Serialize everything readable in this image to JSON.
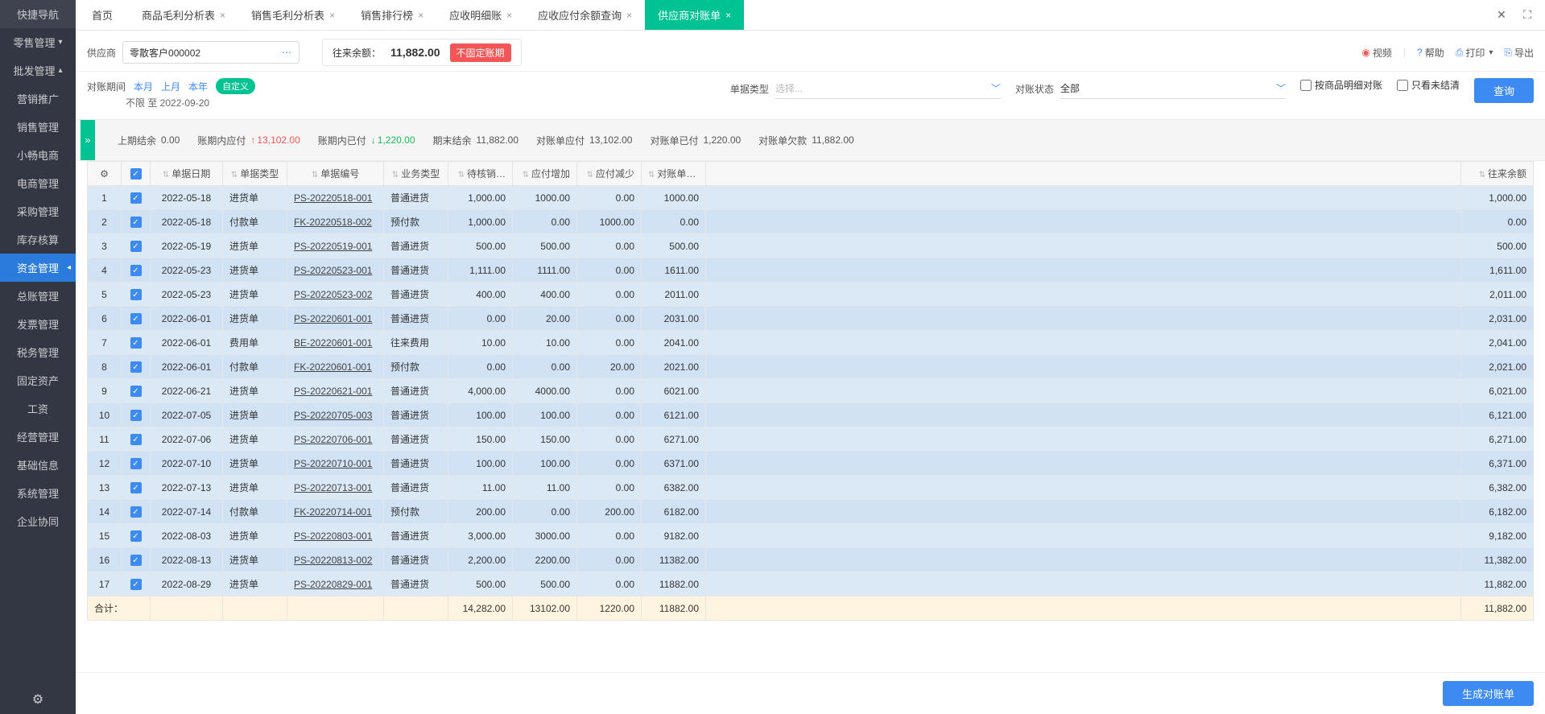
{
  "sidebar": {
    "items": [
      {
        "label": "快捷导航",
        "kind": "plain"
      },
      {
        "label": "零售管理",
        "kind": "expand-down"
      },
      {
        "label": "批发管理",
        "kind": "expand-up"
      },
      {
        "label": "营销推广",
        "kind": "sub"
      },
      {
        "label": "销售管理",
        "kind": "sub"
      },
      {
        "label": "小畅电商",
        "kind": "plain"
      },
      {
        "label": "电商管理",
        "kind": "plain"
      },
      {
        "label": "采购管理",
        "kind": "plain"
      },
      {
        "label": "库存核算",
        "kind": "plain"
      },
      {
        "label": "资金管理",
        "kind": "active"
      },
      {
        "label": "总账管理",
        "kind": "plain"
      },
      {
        "label": "发票管理",
        "kind": "plain"
      },
      {
        "label": "税务管理",
        "kind": "plain"
      },
      {
        "label": "固定资产",
        "kind": "plain"
      },
      {
        "label": "工资",
        "kind": "plain"
      },
      {
        "label": "经营管理",
        "kind": "plain"
      },
      {
        "label": "基础信息",
        "kind": "plain"
      },
      {
        "label": "系统管理",
        "kind": "plain"
      },
      {
        "label": "企业协同",
        "kind": "plain"
      }
    ]
  },
  "tabs": {
    "home": "首页",
    "items": [
      {
        "label": "商品毛利分析表"
      },
      {
        "label": "销售毛利分析表"
      },
      {
        "label": "销售排行榜"
      },
      {
        "label": "应收明细账"
      },
      {
        "label": "应收应付余额查询"
      },
      {
        "label": "供应商对账单",
        "active": true
      }
    ]
  },
  "filter": {
    "supplier_label": "供应商",
    "supplier_value": "零散客户000002",
    "balance_label": "往来余额：",
    "balance_value": "11,882.00",
    "red_tag": "不固定账期",
    "video": "视频",
    "help": "帮助",
    "print": "打印",
    "export": "导出"
  },
  "filter2": {
    "period_label": "对账期间",
    "this_month": "本月",
    "last_month": "上月",
    "this_year": "本年",
    "custom": "自定义",
    "period_sub": "不限 至 2022-09-20",
    "doc_type_label": "单据类型",
    "doc_type_placeholder": "选择...",
    "status_label": "对账状态",
    "status_value": "全部",
    "chk1": "按商品明细对账",
    "chk2": "只看未结清",
    "query": "查询"
  },
  "summary": {
    "s1_l": "上期结余",
    "s1_v": "0.00",
    "s2_l": "账期内应付",
    "s2_v": "13,102.00",
    "s3_l": "账期内已付",
    "s3_v": "1,220.00",
    "s4_l": "期末结余",
    "s4_v": "11,882.00",
    "s5_l": "对账单应付",
    "s5_v": "13,102.00",
    "s6_l": "对账单已付",
    "s6_v": "1,220.00",
    "s7_l": "对账单欠款",
    "s7_v": "11,882.00"
  },
  "table": {
    "headers": {
      "date": "单据日期",
      "dtype": "单据类型",
      "docno": "单据编号",
      "biz": "业务类型",
      "pending": "待核销…",
      "inc": "应付增加",
      "dec": "应付减少",
      "owe": "对账单欠款",
      "bal": "往来余额"
    },
    "rows": [
      {
        "i": 1,
        "date": "2022-05-18",
        "dtype": "进货单",
        "docno": "PS-20220518-001",
        "biz": "普通进货",
        "pending": "1,000.00",
        "inc": "1000.00",
        "dec": "0.00",
        "owe": "1000.00",
        "bal": "1,000.00"
      },
      {
        "i": 2,
        "date": "2022-05-18",
        "dtype": "付款单",
        "docno": "FK-20220518-002",
        "biz": "预付款",
        "pending": "1,000.00",
        "inc": "0.00",
        "dec": "1000.00",
        "owe": "0.00",
        "bal": "0.00"
      },
      {
        "i": 3,
        "date": "2022-05-19",
        "dtype": "进货单",
        "docno": "PS-20220519-001",
        "biz": "普通进货",
        "pending": "500.00",
        "inc": "500.00",
        "dec": "0.00",
        "owe": "500.00",
        "bal": "500.00"
      },
      {
        "i": 4,
        "date": "2022-05-23",
        "dtype": "进货单",
        "docno": "PS-20220523-001",
        "biz": "普通进货",
        "pending": "1,111.00",
        "inc": "1111.00",
        "dec": "0.00",
        "owe": "1611.00",
        "bal": "1,611.00"
      },
      {
        "i": 5,
        "date": "2022-05-23",
        "dtype": "进货单",
        "docno": "PS-20220523-002",
        "biz": "普通进货",
        "pending": "400.00",
        "inc": "400.00",
        "dec": "0.00",
        "owe": "2011.00",
        "bal": "2,011.00"
      },
      {
        "i": 6,
        "date": "2022-06-01",
        "dtype": "进货单",
        "docno": "PS-20220601-001",
        "biz": "普通进货",
        "pending": "0.00",
        "inc": "20.00",
        "dec": "0.00",
        "owe": "2031.00",
        "bal": "2,031.00"
      },
      {
        "i": 7,
        "date": "2022-06-01",
        "dtype": "费用单",
        "docno": "BE-20220601-001",
        "biz": "往来费用",
        "pending": "10.00",
        "inc": "10.00",
        "dec": "0.00",
        "owe": "2041.00",
        "bal": "2,041.00"
      },
      {
        "i": 8,
        "date": "2022-06-01",
        "dtype": "付款单",
        "docno": "FK-20220601-001",
        "biz": "预付款",
        "pending": "0.00",
        "inc": "0.00",
        "dec": "20.00",
        "owe": "2021.00",
        "bal": "2,021.00"
      },
      {
        "i": 9,
        "date": "2022-06-21",
        "dtype": "进货单",
        "docno": "PS-20220621-001",
        "biz": "普通进货",
        "pending": "4,000.00",
        "inc": "4000.00",
        "dec": "0.00",
        "owe": "6021.00",
        "bal": "6,021.00"
      },
      {
        "i": 10,
        "date": "2022-07-05",
        "dtype": "进货单",
        "docno": "PS-20220705-003",
        "biz": "普通进货",
        "pending": "100.00",
        "inc": "100.00",
        "dec": "0.00",
        "owe": "6121.00",
        "bal": "6,121.00"
      },
      {
        "i": 11,
        "date": "2022-07-06",
        "dtype": "进货单",
        "docno": "PS-20220706-001",
        "biz": "普通进货",
        "pending": "150.00",
        "inc": "150.00",
        "dec": "0.00",
        "owe": "6271.00",
        "bal": "6,271.00"
      },
      {
        "i": 12,
        "date": "2022-07-10",
        "dtype": "进货单",
        "docno": "PS-20220710-001",
        "biz": "普通进货",
        "pending": "100.00",
        "inc": "100.00",
        "dec": "0.00",
        "owe": "6371.00",
        "bal": "6,371.00"
      },
      {
        "i": 13,
        "date": "2022-07-13",
        "dtype": "进货单",
        "docno": "PS-20220713-001",
        "biz": "普通进货",
        "pending": "11.00",
        "inc": "11.00",
        "dec": "0.00",
        "owe": "6382.00",
        "bal": "6,382.00"
      },
      {
        "i": 14,
        "date": "2022-07-14",
        "dtype": "付款单",
        "docno": "FK-20220714-001",
        "biz": "预付款",
        "pending": "200.00",
        "inc": "0.00",
        "dec": "200.00",
        "owe": "6182.00",
        "bal": "6,182.00"
      },
      {
        "i": 15,
        "date": "2022-08-03",
        "dtype": "进货单",
        "docno": "PS-20220803-001",
        "biz": "普通进货",
        "pending": "3,000.00",
        "inc": "3000.00",
        "dec": "0.00",
        "owe": "9182.00",
        "bal": "9,182.00"
      },
      {
        "i": 16,
        "date": "2022-08-13",
        "dtype": "进货单",
        "docno": "PS-20220813-002",
        "biz": "普通进货",
        "pending": "2,200.00",
        "inc": "2200.00",
        "dec": "0.00",
        "owe": "11382.00",
        "bal": "11,382.00"
      },
      {
        "i": 17,
        "date": "2022-08-29",
        "dtype": "进货单",
        "docno": "PS-20220829-001",
        "biz": "普通进货",
        "pending": "500.00",
        "inc": "500.00",
        "dec": "0.00",
        "owe": "11882.00",
        "bal": "11,882.00"
      }
    ],
    "total": {
      "label": "合计：",
      "pending": "14,282.00",
      "inc": "13102.00",
      "dec": "1220.00",
      "owe": "11882.00",
      "bal": "11,882.00"
    }
  },
  "footer": {
    "generate": "生成对账单"
  }
}
